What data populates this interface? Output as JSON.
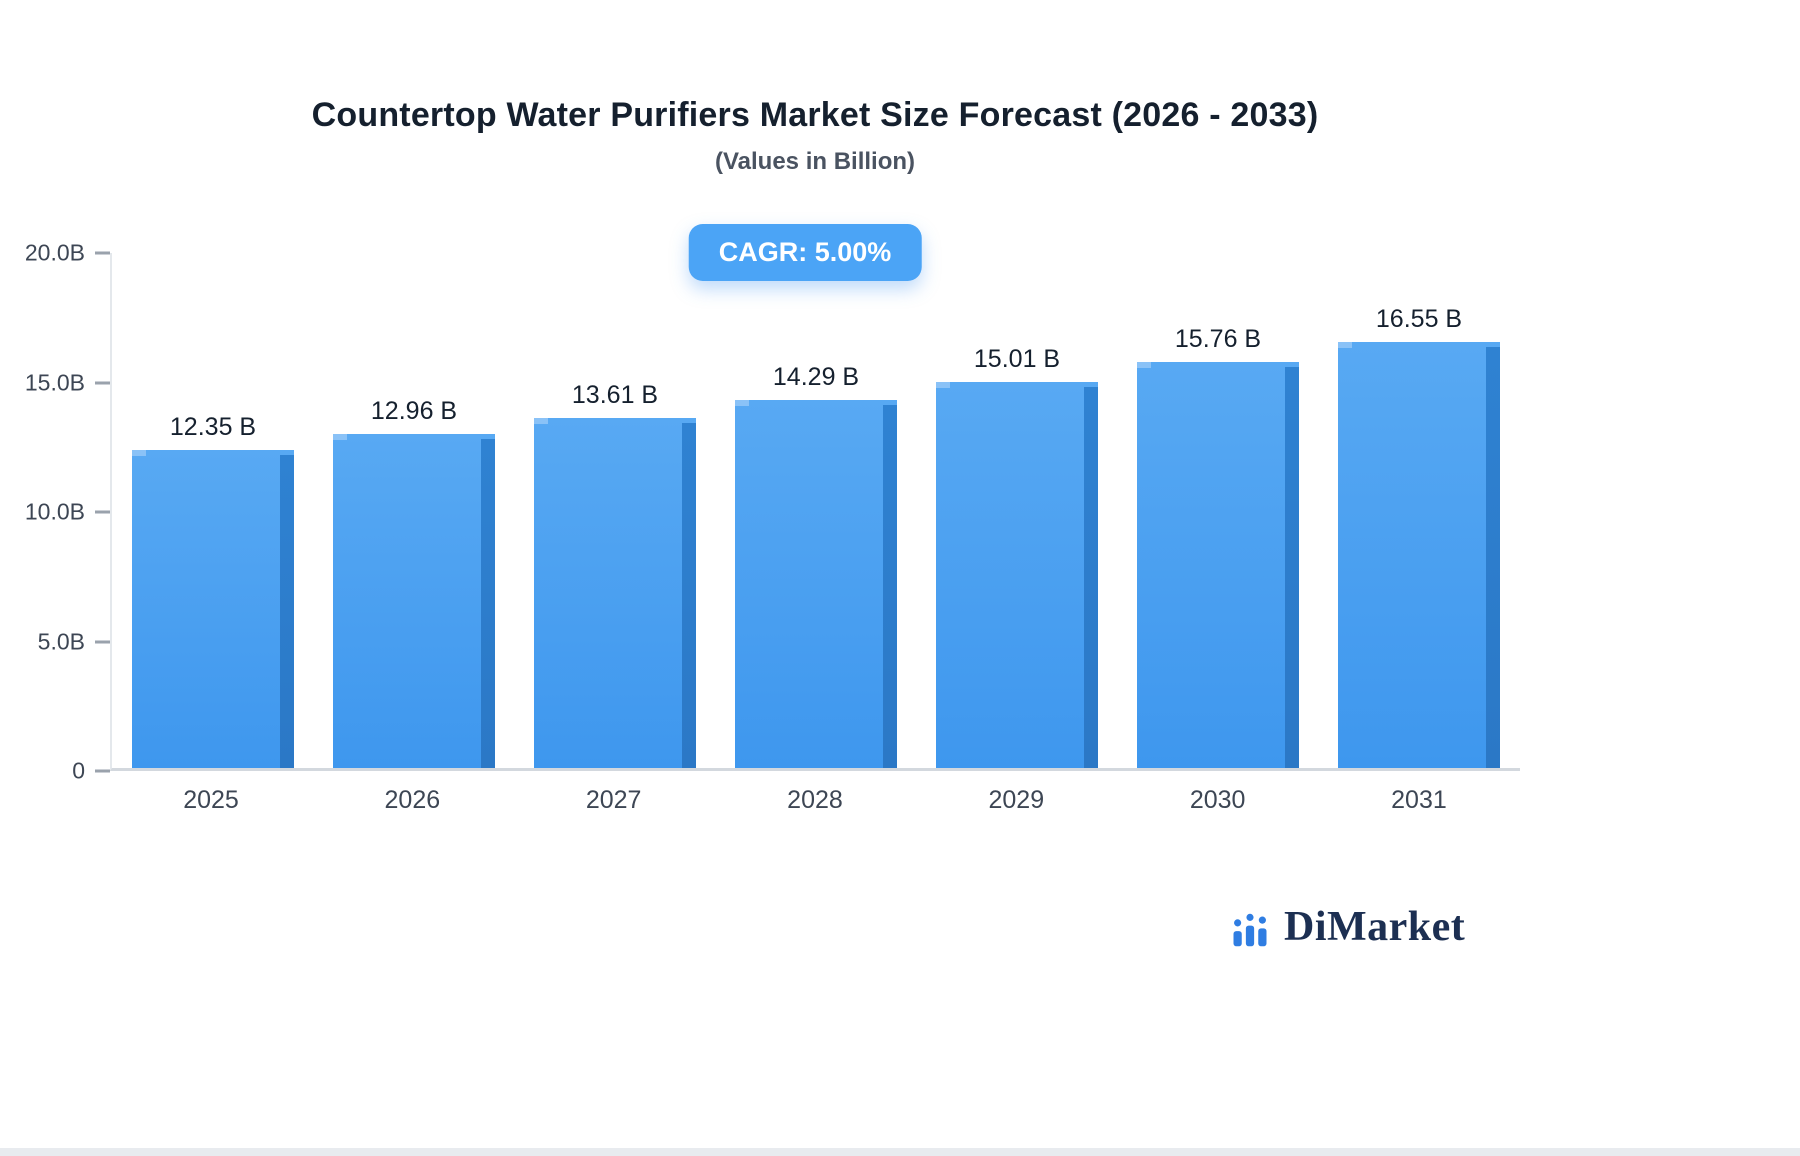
{
  "header": {
    "title": "Countertop Water Purifiers Market Size Forecast (2026 - 2033)",
    "subtitle": "(Values in Billion)",
    "cagr_badge": "CAGR: 5.00%"
  },
  "chart_data": {
    "type": "bar",
    "categories": [
      "2025",
      "2026",
      "2027",
      "2028",
      "2029",
      "2030",
      "2031"
    ],
    "values": [
      12.35,
      12.96,
      13.61,
      14.29,
      15.01,
      15.76,
      16.55
    ],
    "value_labels": [
      "12.35 B",
      "12.96 B",
      "13.61 B",
      "14.29 B",
      "15.01 B",
      "15.76 B",
      "16.55 B"
    ],
    "title": "Countertop Water Purifiers Market Size Forecast (2026 - 2033)",
    "subtitle": "(Values in Billion)",
    "annotation": "CAGR: 5.00%",
    "xlabel": "",
    "ylabel": "",
    "ylim": [
      0,
      20
    ],
    "yticks": [
      {
        "value": 0,
        "label": "0"
      },
      {
        "value": 5,
        "label": "5.0B"
      },
      {
        "value": 10,
        "label": "10.0B"
      },
      {
        "value": 15,
        "label": "15.0B"
      },
      {
        "value": 20,
        "label": "20.0B"
      }
    ],
    "grid": false,
    "legend_position": "none",
    "colors": {
      "bar_top": "#58A9F3",
      "bar_bottom": "#3E97EE",
      "bar_side": "#2B78C6",
      "badge": "#4BA4F6",
      "axis_text": "#3d4654",
      "value_text": "#15202e"
    }
  },
  "branding": {
    "logo_text": "DiMarket",
    "logo_icon": "mini-bar-chart-icon",
    "logo_color": "#2f7de2"
  }
}
